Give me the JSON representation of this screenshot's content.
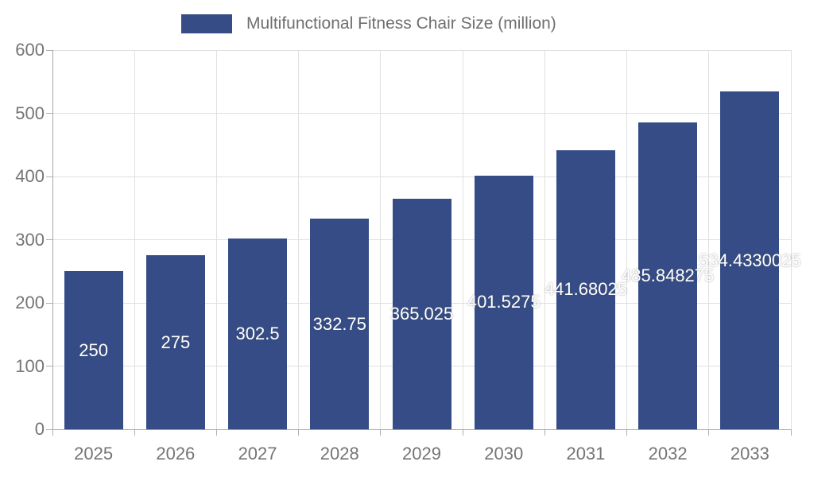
{
  "page": {
    "background": "#ffffff"
  },
  "legend": {
    "label": "Multifunctional Fitness Chair Size (million)",
    "swatch_color": "#354C87",
    "text_color": "#6f6f6f"
  },
  "chart_data": {
    "type": "bar",
    "title": "Multifunctional Fitness Chair Size (million)",
    "categories": [
      "2025",
      "2026",
      "2027",
      "2028",
      "2029",
      "2030",
      "2031",
      "2032",
      "2033"
    ],
    "values": [
      250,
      275,
      302.5,
      332.75,
      365.025,
      401.5275,
      441.68025,
      485.848275,
      534.4330025
    ],
    "value_labels": [
      "250",
      "275",
      "302.5",
      "332.75",
      "365.025",
      "401.5275",
      "441.68025",
      "485.848275",
      "534.4330025"
    ],
    "series_name": "Multifunctional Fitness Chair Size (million)",
    "xlabel": "",
    "ylabel": "",
    "ylim": [
      0,
      600
    ],
    "ytick_step": 100,
    "ytick_labels": [
      "0",
      "100",
      "200",
      "300",
      "400",
      "500",
      "600"
    ],
    "grid": "on",
    "legend_position": "top",
    "bar_color": "#354C87",
    "value_label_color": "#ffffff",
    "axis_text_color": "#757575",
    "grid_color": "#e0e0e0",
    "axis_line_color": "#a6a6a6"
  }
}
